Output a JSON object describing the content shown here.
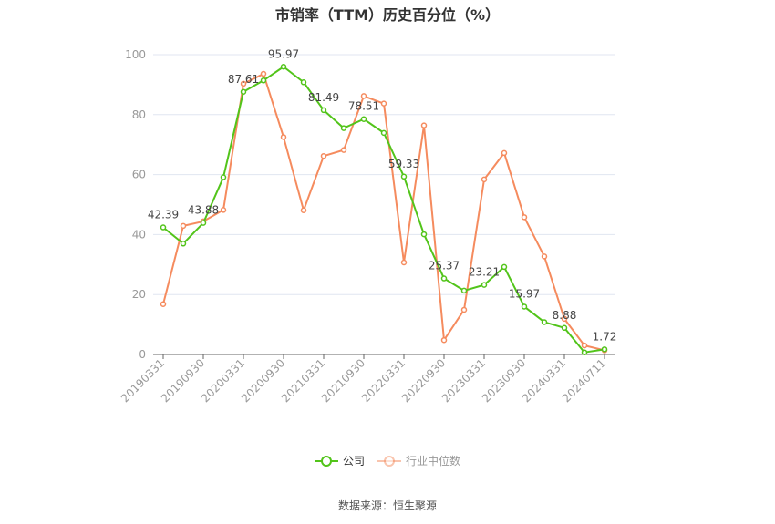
{
  "title": "市销率（TTM）历史百分位（%）",
  "source": "数据来源：恒生聚源",
  "legend": {
    "company_label": "公司",
    "industry_label": "行业中位数"
  },
  "colors": {
    "company": "#52c41a",
    "industry": "#f58b5e",
    "grid": "#e0e6f1",
    "axis": "#666666",
    "tick_label": "#999999",
    "data_label": "#444444"
  },
  "chart_data": {
    "type": "line",
    "title": "市销率（TTM）历史百分位（%）",
    "xlabel": "",
    "ylabel": "",
    "ylim": [
      0,
      100
    ],
    "yticks": [
      0,
      20,
      40,
      60,
      80,
      100
    ],
    "grid": true,
    "legend_position": "bottom",
    "x": [
      "20190331",
      "20190630",
      "20190930",
      "20191231",
      "20200331",
      "20200630",
      "20200930",
      "20201231",
      "20210331",
      "20210630",
      "20210930",
      "20211231",
      "20220331",
      "20220630",
      "20220930",
      "20221231",
      "20230331",
      "20230630",
      "20230930",
      "20231231",
      "20240331",
      "20240630",
      "20240711"
    ],
    "x_tick_labels": [
      "20190331",
      "20190930",
      "20200331",
      "20200930",
      "20210331",
      "20210930",
      "20220331",
      "20220930",
      "20230331",
      "20230930",
      "20240331",
      "20240711"
    ],
    "series": [
      {
        "name": "公司",
        "values": [
          42.39,
          37.0,
          43.88,
          59.1,
          87.61,
          91.4,
          95.97,
          90.8,
          81.49,
          75.5,
          78.51,
          73.9,
          59.33,
          40.1,
          25.37,
          21.3,
          23.21,
          29.2,
          15.97,
          10.8,
          8.88,
          0.7,
          1.72
        ],
        "labels": {
          "0": "42.39",
          "2": "43.88",
          "4": "87.61",
          "6": "95.97",
          "8": "81.49",
          "10": "78.51",
          "12": "59.33",
          "14": "25.37",
          "16": "23.21",
          "18": "15.97",
          "20": "8.88",
          "22": "1.72"
        }
      },
      {
        "name": "行业中位数",
        "values": [
          16.8,
          42.9,
          44.4,
          48.2,
          90.3,
          93.6,
          72.5,
          48.1,
          66.2,
          68.2,
          86.2,
          83.7,
          30.7,
          76.4,
          4.8,
          14.9,
          58.4,
          67.2,
          45.8,
          32.7,
          11.9,
          3.0,
          1.4
        ]
      }
    ],
    "annotations": [
      "42.39",
      "43.88",
      "87.61",
      "95.97",
      "81.49",
      "78.51",
      "59.33",
      "25.37",
      "23.21",
      "15.97",
      "8.88",
      "1.72"
    ]
  }
}
